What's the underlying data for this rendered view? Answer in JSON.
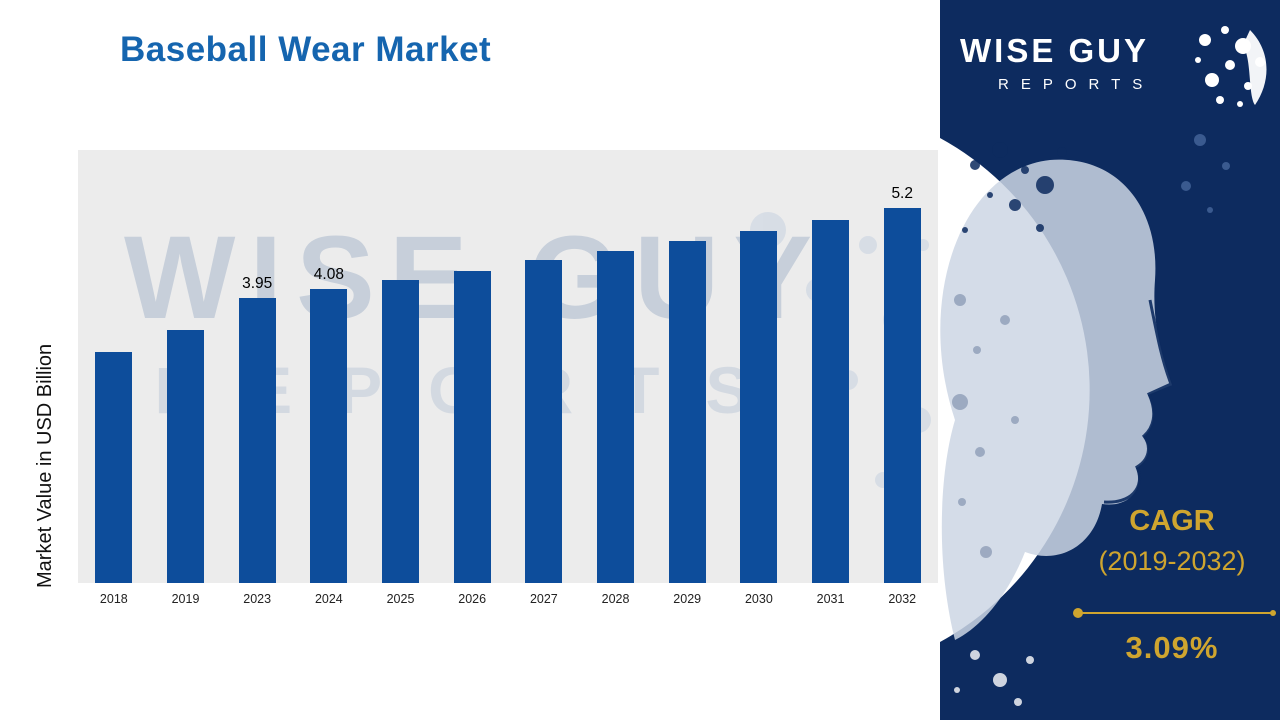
{
  "chart_data": {
    "type": "bar",
    "title": "Baseball Wear Market",
    "xlabel": "",
    "ylabel": "Market Value in USD Billion",
    "categories": [
      "2018",
      "2019",
      "2023",
      "2024",
      "2025",
      "2026",
      "2027",
      "2028",
      "2029",
      "2030",
      "2031",
      "2032"
    ],
    "values": [
      3.2,
      3.5,
      3.95,
      4.08,
      4.2,
      4.33,
      4.47,
      4.6,
      4.74,
      4.88,
      5.03,
      5.2
    ],
    "value_labels": [
      "",
      "",
      "3.95",
      "4.08",
      "",
      "",
      "",
      "",
      "",
      "",
      "",
      "5.2"
    ],
    "ylim": [
      0,
      6
    ],
    "grid": false,
    "legend": false,
    "bar_color": "#0d4d9b",
    "plot_background": "#ececec"
  },
  "watermark": {
    "line1": "WISE GUY",
    "line2": "REPORTS"
  },
  "brand": {
    "line1": "WISE GUY",
    "line2": "REPORTS"
  },
  "panel": {
    "cagr_label": "CAGR",
    "cagr_range": "(2019-2032)",
    "cagr_value": "3.09%"
  },
  "colors": {
    "bar": "#0d4d9b",
    "title": "#1565af",
    "panel_navy": "#0d2b5f",
    "gold": "#cfa52f"
  }
}
